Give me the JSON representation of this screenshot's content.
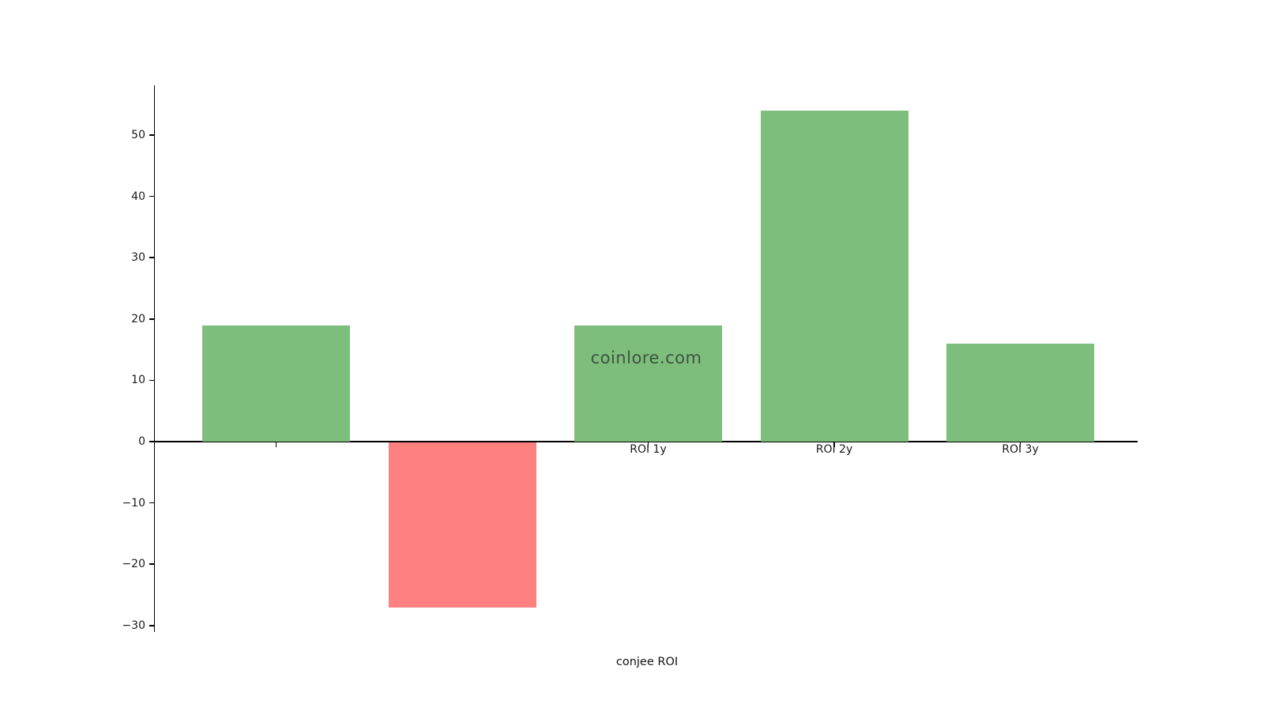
{
  "chart_data": {
    "type": "bar",
    "xlabel": "conjee ROI",
    "watermark": "coinlore.com",
    "categories": [
      "",
      "",
      "ROI 1y",
      "ROI 2y",
      "ROI 3y"
    ],
    "values": [
      19,
      -27,
      19,
      54,
      16
    ],
    "series": [
      {
        "name": "ROI",
        "values": [
          19,
          -27,
          19,
          54,
          16
        ]
      }
    ],
    "positive_color": "#7dbe7d",
    "negative_color": "#ff8080",
    "yticks": [
      50,
      40,
      30,
      20,
      10,
      0,
      -10,
      -20,
      -30
    ],
    "ylim": [
      -30,
      58
    ],
    "grid": false,
    "legend_position": "none",
    "axis_color": "#000000",
    "text_color": "#1a1a1a",
    "watermark_color": "rgba(40,40,40,0.72)"
  }
}
